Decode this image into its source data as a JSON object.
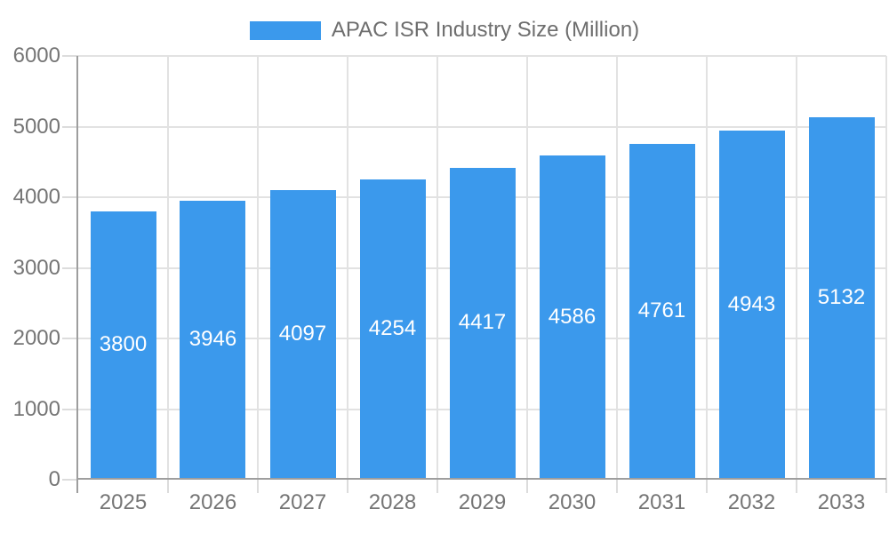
{
  "chart_data": {
    "type": "bar",
    "title": "",
    "legend_label": "APAC ISR Industry Size (Million)",
    "legend_position": "top",
    "categories": [
      "2025",
      "2026",
      "2027",
      "2028",
      "2029",
      "2030",
      "2031",
      "2032",
      "2033"
    ],
    "series": [
      {
        "name": "APAC ISR Industry Size (Million)",
        "values": [
          3800,
          3946,
          4097,
          4254,
          4417,
          4586,
          4761,
          4943,
          5132
        ]
      }
    ],
    "value_labels_shown": true,
    "xlabel": "",
    "ylabel": "",
    "ylim": [
      0,
      6000
    ],
    "yticks": [
      0,
      1000,
      2000,
      3000,
      4000,
      5000,
      6000
    ],
    "grid": true,
    "colors": {
      "bar": "#3b99ec",
      "grid": "#e2e2e2",
      "tick": "#dcdcdc",
      "axis": "#9e9e9e",
      "axis_text": "#757575",
      "legend_text": "#6e6e6e",
      "value_text": "#ffffff",
      "background": "#ffffff"
    }
  }
}
